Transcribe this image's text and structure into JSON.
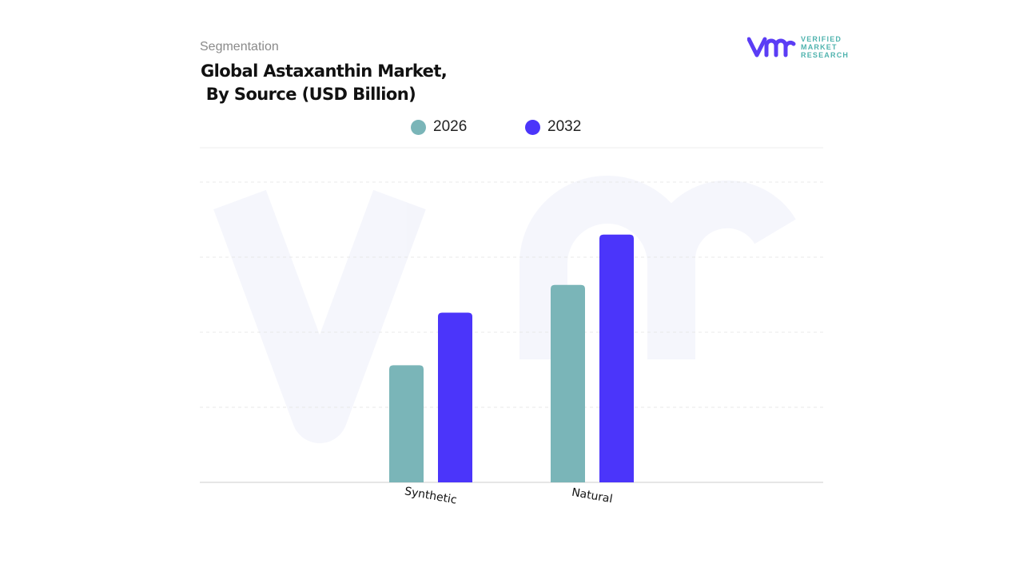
{
  "header": {
    "segment_label": "Segmentation",
    "title": "Global Astaxanthin Market,\n By Source (USD Billion)"
  },
  "logo": {
    "line1": "VERIFIED",
    "line2": "MARKET",
    "line3": "RESEARCH",
    "brand_color": "#5b3df5",
    "text_color": "#4fb3ae"
  },
  "chart_data": {
    "type": "bar",
    "title": "Global Astaxanthin Market, By Source (USD Billion)",
    "categories": [
      "Synthetic",
      "Natural"
    ],
    "series": [
      {
        "name": "2026",
        "color": "#7ab5b8",
        "values": [
          1.56,
          2.63
        ]
      },
      {
        "name": "2032",
        "color": "#4b35fa",
        "values": [
          2.26,
          3.3
        ]
      }
    ],
    "ylim": [
      0,
      4
    ],
    "grid": true,
    "legend_placement": "top-center",
    "xlabel": "",
    "ylabel": ""
  }
}
